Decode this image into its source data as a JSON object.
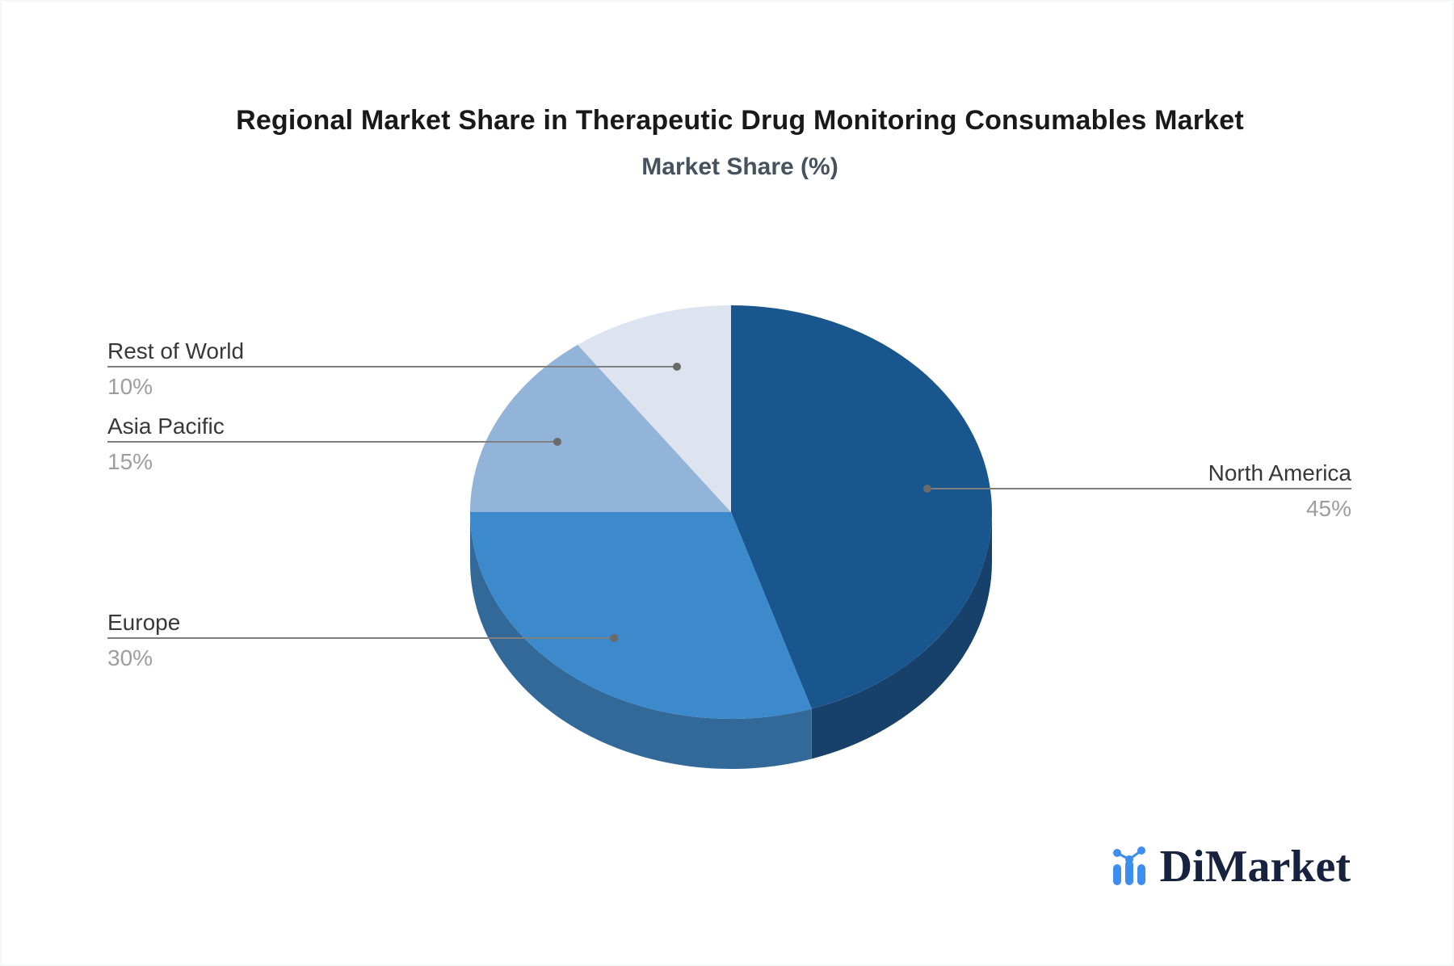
{
  "chart_data": {
    "type": "pie",
    "style": "3d",
    "title": "Regional Market Share in Therapeutic Drug Monitoring Consumables Market",
    "subtitle": "Market Share (%)",
    "unit": "%",
    "start_angle": "12-oclock",
    "direction": "clockwise",
    "legend_position": "callout-labels",
    "series": [
      {
        "label": "North America",
        "value": 45,
        "pct_label": "45%",
        "color": "#1A568E",
        "side_color": "#17406A"
      },
      {
        "label": "Europe",
        "value": 30,
        "pct_label": "30%",
        "color": "#3C8ACB",
        "side_color": "#326999"
      },
      {
        "label": "Asia Pacific",
        "value": 15,
        "pct_label": "15%",
        "color": "#92B4D8",
        "side_color": "#6E8FB5"
      },
      {
        "label": "Rest of World",
        "value": 10,
        "pct_label": "10%",
        "color": "#DDE4F0",
        "side_color": "#B9C4D6"
      }
    ],
    "connector_color": "#7f7f7f",
    "connector_dot_color": "#6a6a6a"
  },
  "branding": {
    "name": "DiMarket",
    "logo_icon": "bar-line-chart-icon",
    "text_color": "#16223e",
    "icon_color": "#3E8EF0"
  }
}
